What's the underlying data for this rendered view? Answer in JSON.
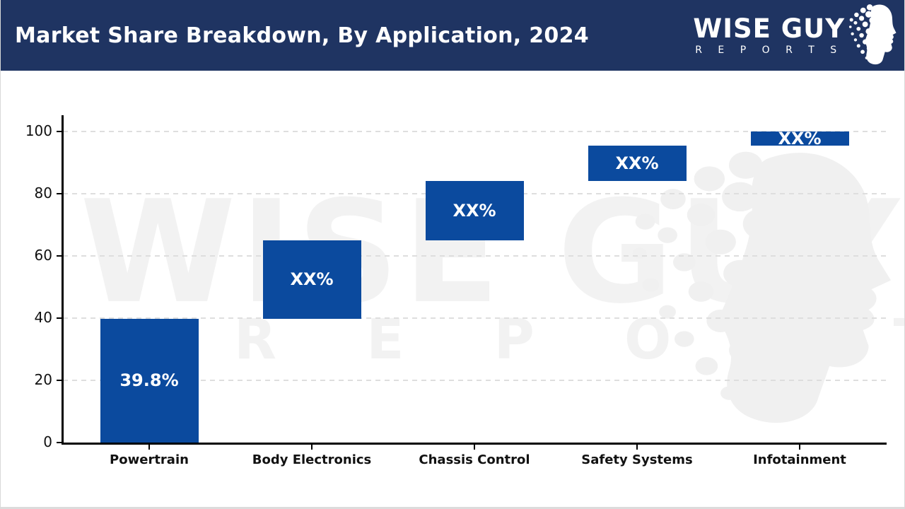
{
  "header": {
    "title": "Market Share Breakdown, By Application, 2024",
    "logo": {
      "line1": "WISE GUY",
      "line2": "R E P O R T S"
    }
  },
  "watermark": {
    "line1": "WISE GUY",
    "line2": "R E P O R T S"
  },
  "colors": {
    "header_bg": "#1F3462",
    "bar": "#0B4A9E",
    "bar_label": "#ffffff",
    "gridline": "#dedede",
    "axis": "#000000",
    "watermark": "#f2f2f2"
  },
  "chart_data": {
    "type": "bar",
    "subtype": "waterfall",
    "title": "Market Share Breakdown, By Application, 2024",
    "xlabel": "",
    "ylabel": "",
    "ylim": [
      0,
      100
    ],
    "yticks": [
      0,
      20,
      40,
      60,
      80,
      100
    ],
    "grid": "horizontal-dashed",
    "legend": "none",
    "categories": [
      "Powertrain",
      "Body Electronics",
      "Chassis Control",
      "Safety Systems",
      "Infotainment"
    ],
    "series": [
      {
        "category": "Powertrain",
        "start": 0,
        "end": 39.8,
        "value": 39.8,
        "label": "39.8%"
      },
      {
        "category": "Body Electronics",
        "start": 39.8,
        "end": 65,
        "value": 25.2,
        "label": "XX%"
      },
      {
        "category": "Chassis Control",
        "start": 65,
        "end": 84,
        "value": 19,
        "label": "XX%"
      },
      {
        "category": "Safety Systems",
        "start": 84,
        "end": 95.5,
        "value": 11.5,
        "label": "XX%"
      },
      {
        "category": "Infotainment",
        "start": 95.5,
        "end": 100,
        "value": 4.5,
        "label": "XX%"
      }
    ]
  }
}
